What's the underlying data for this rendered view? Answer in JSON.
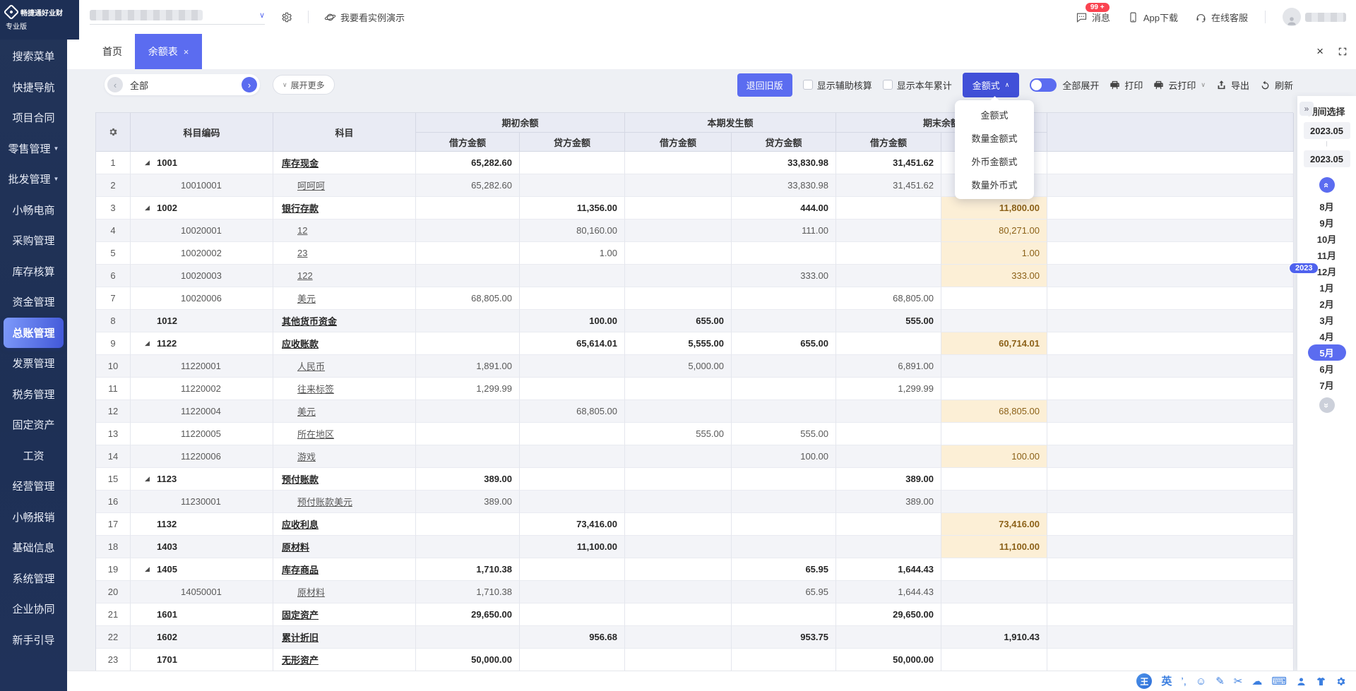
{
  "brand": {
    "name": "畅捷通好业财",
    "edition": "专业版"
  },
  "topbar": {
    "company_placeholder": "",
    "demo_link": "我要看实例演示",
    "messages_label": "消息",
    "messages_badge": "99 +",
    "app_download": "App下载",
    "support": "在线客服"
  },
  "tabs": [
    {
      "label": "首页",
      "active": false,
      "closable": false
    },
    {
      "label": "余额表",
      "active": true,
      "closable": true
    }
  ],
  "sidebar": {
    "items": [
      {
        "label": "搜索菜单"
      },
      {
        "label": "快捷导航"
      },
      {
        "label": "项目合同"
      },
      {
        "label": "零售管理",
        "caret": true
      },
      {
        "label": "批发管理",
        "caret": true
      },
      {
        "label": "小畅电商"
      },
      {
        "label": "采购管理"
      },
      {
        "label": "库存核算"
      },
      {
        "label": "资金管理"
      },
      {
        "label": "总账管理",
        "active": true
      },
      {
        "label": "发票管理"
      },
      {
        "label": "税务管理"
      },
      {
        "label": "固定资产"
      },
      {
        "label": "工资"
      },
      {
        "label": "经营管理"
      },
      {
        "label": "小畅报销"
      },
      {
        "label": "基础信息"
      },
      {
        "label": "系统管理"
      },
      {
        "label": "企业协同"
      },
      {
        "label": "新手引导"
      }
    ]
  },
  "toolbar": {
    "scope_value": "全部",
    "expand_more": "展开更多",
    "back_old": "退回旧版",
    "chk_aux": "显示辅助核算",
    "chk_ytd": "显示本年累计",
    "format_btn": "金额式",
    "expand_all": "全部展开",
    "print": "打印",
    "cloud_print": "云打印",
    "export": "导出",
    "refresh": "刷新"
  },
  "format_menu": {
    "items": [
      "金额式",
      "数量金额式",
      "外币金额式",
      "数量外币式"
    ]
  },
  "period_panel": {
    "title": "期间选择",
    "from": "2023.05",
    "to": "2023.05",
    "year_badge": "2023",
    "months": [
      "8月",
      "9月",
      "10月",
      "11月",
      "12月",
      "1月",
      "2月",
      "3月",
      "4月",
      "5月",
      "6月",
      "7月"
    ],
    "selected_month": "5月"
  },
  "table": {
    "headers": {
      "code": "科目编码",
      "name": "科目",
      "group_initial": "期初余额",
      "group_period": "本期发生额",
      "group_ending": "期末余额",
      "debit": "借方金额",
      "credit": "贷方金额"
    },
    "rows": [
      {
        "no": 1,
        "code": "1001",
        "name": "库存现金",
        "top": true,
        "exp": true,
        "vals": [
          "65,282.60",
          "",
          "",
          "33,830.98",
          "31,451.62",
          ""
        ]
      },
      {
        "no": 2,
        "code": "10010001",
        "name": "呵呵呵",
        "top": false,
        "vals": [
          "65,282.60",
          "",
          "",
          "33,830.98",
          "31,451.62",
          ""
        ]
      },
      {
        "no": 3,
        "code": "1002",
        "name": "银行存款",
        "top": true,
        "exp": true,
        "warn": true,
        "vals": [
          "",
          "11,356.00",
          "",
          "444.00",
          "",
          "11,800.00"
        ]
      },
      {
        "no": 4,
        "code": "10020001",
        "name": "12",
        "top": false,
        "warn": true,
        "vals": [
          "",
          "80,160.00",
          "",
          "111.00",
          "",
          "80,271.00"
        ]
      },
      {
        "no": 5,
        "code": "10020002",
        "name": "23",
        "top": false,
        "warn": true,
        "vals": [
          "",
          "1.00",
          "",
          "",
          "",
          "1.00"
        ]
      },
      {
        "no": 6,
        "code": "10020003",
        "name": "122",
        "top": false,
        "warn": true,
        "vals": [
          "",
          "",
          "",
          "333.00",
          "",
          "333.00"
        ]
      },
      {
        "no": 7,
        "code": "10020006",
        "name": "美元",
        "top": false,
        "vals": [
          "68,805.00",
          "",
          "",
          "",
          "68,805.00",
          ""
        ]
      },
      {
        "no": 8,
        "code": "1012",
        "name": "其他货币资金",
        "top": true,
        "vals": [
          "",
          "100.00",
          "655.00",
          "",
          "555.00",
          ""
        ]
      },
      {
        "no": 9,
        "code": "1122",
        "name": "应收账款",
        "top": true,
        "exp": true,
        "warn": true,
        "vals": [
          "",
          "65,614.01",
          "5,555.00",
          "655.00",
          "",
          "60,714.01"
        ]
      },
      {
        "no": 10,
        "code": "11220001",
        "name": "人民币",
        "top": false,
        "vals": [
          "1,891.00",
          "",
          "5,000.00",
          "",
          "6,891.00",
          ""
        ]
      },
      {
        "no": 11,
        "code": "11220002",
        "name": "往来标签",
        "top": false,
        "vals": [
          "1,299.99",
          "",
          "",
          "",
          "1,299.99",
          ""
        ]
      },
      {
        "no": 12,
        "code": "11220004",
        "name": "美元",
        "top": false,
        "warn": true,
        "vals": [
          "",
          "68,805.00",
          "",
          "",
          "",
          "68,805.00"
        ]
      },
      {
        "no": 13,
        "code": "11220005",
        "name": "所在地区",
        "top": false,
        "vals": [
          "",
          "",
          "555.00",
          "555.00",
          "",
          ""
        ]
      },
      {
        "no": 14,
        "code": "11220006",
        "name": "游戏",
        "top": false,
        "warn": true,
        "vals": [
          "",
          "",
          "",
          "100.00",
          "",
          "100.00"
        ]
      },
      {
        "no": 15,
        "code": "1123",
        "name": "预付账款",
        "top": true,
        "exp": true,
        "vals": [
          "389.00",
          "",
          "",
          "",
          "389.00",
          ""
        ]
      },
      {
        "no": 16,
        "code": "11230001",
        "name": "预付账款美元",
        "top": false,
        "vals": [
          "389.00",
          "",
          "",
          "",
          "389.00",
          ""
        ]
      },
      {
        "no": 17,
        "code": "1132",
        "name": "应收利息",
        "top": true,
        "warn": true,
        "vals": [
          "",
          "73,416.00",
          "",
          "",
          "",
          "73,416.00"
        ]
      },
      {
        "no": 18,
        "code": "1403",
        "name": "原材料",
        "top": true,
        "warn": true,
        "vals": [
          "",
          "11,100.00",
          "",
          "",
          "",
          "11,100.00"
        ]
      },
      {
        "no": 19,
        "code": "1405",
        "name": "库存商品",
        "top": true,
        "exp": true,
        "vals": [
          "1,710.38",
          "",
          "",
          "65.95",
          "1,644.43",
          ""
        ]
      },
      {
        "no": 20,
        "code": "14050001",
        "name": "原材料",
        "top": false,
        "vals": [
          "1,710.38",
          "",
          "",
          "65.95",
          "1,644.43",
          ""
        ]
      },
      {
        "no": 21,
        "code": "1601",
        "name": "固定资产",
        "top": true,
        "vals": [
          "29,650.00",
          "",
          "",
          "",
          "29,650.00",
          ""
        ]
      },
      {
        "no": 22,
        "code": "1602",
        "name": "累计折旧",
        "top": true,
        "vals": [
          "",
          "956.68",
          "",
          "953.75",
          "",
          "1,910.43"
        ]
      },
      {
        "no": 23,
        "code": "1701",
        "name": "无形资产",
        "top": true,
        "vals": [
          "50,000.00",
          "",
          "",
          "",
          "50,000.00",
          ""
        ]
      }
    ]
  },
  "taskbar": {
    "ime_logo": "王",
    "icons": [
      {
        "name": "ime-english-mode",
        "glyph": "英",
        "bold": true
      },
      {
        "name": "ime-punctuation",
        "glyph": "’,"
      },
      {
        "name": "emoji-icon",
        "glyph": "☺"
      },
      {
        "name": "pen-icon",
        "glyph": "✎"
      },
      {
        "name": "scissors-icon",
        "glyph": "✂"
      },
      {
        "name": "cloud-icon",
        "glyph": "☁"
      },
      {
        "name": "keyboard-icon",
        "glyph": "⌨"
      },
      {
        "name": "person-icon",
        "svg": "person"
      },
      {
        "name": "clothes-icon",
        "svg": "shirt"
      },
      {
        "name": "settings-gear-icon",
        "svg": "gear"
      }
    ]
  },
  "colors": {
    "accent": "#5b6cf0",
    "accent_dark": "#4150d8",
    "sidebar_bg": "#1e3055",
    "warn_bg": "#fcefd6",
    "warn_text": "#8c6118",
    "badge_red": "#fa4350",
    "taskbar_blue": "#3c7fe0"
  }
}
